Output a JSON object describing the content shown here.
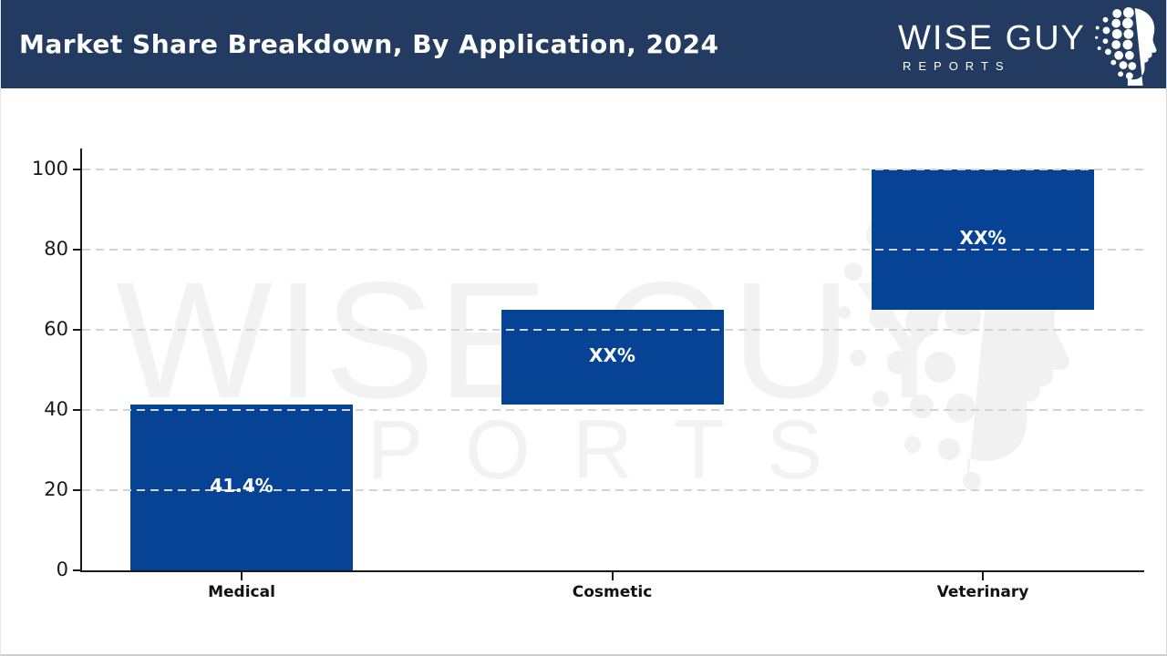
{
  "header": {
    "title": "Market Share Breakdown, By Application, 2024",
    "bg_color": "#233a61",
    "logo": {
      "line1": "WISE GUY",
      "line2": "REPORTS"
    }
  },
  "watermark": {
    "line1": "WISE GUY",
    "line2": "REPORTS",
    "color": "#f2f2f2"
  },
  "chart_data": {
    "type": "bar",
    "subtype": "floating-waterfall",
    "title": "Market Share Breakdown, By Application, 2024",
    "categories": [
      "Medical",
      "Cosmetic",
      "Veterinary"
    ],
    "segments": [
      {
        "category": "Medical",
        "start": 0,
        "end": 41.4,
        "label": "41.4%"
      },
      {
        "category": "Cosmetic",
        "start": 41.4,
        "end": 65,
        "label": "XX%"
      },
      {
        "category": "Veterinary",
        "start": 65,
        "end": 100,
        "label": "XX%"
      }
    ],
    "ylim": [
      0,
      100
    ],
    "yticks": [
      0,
      20,
      40,
      60,
      80,
      100
    ],
    "xlabel": "",
    "ylabel": "",
    "grid": "horizontal-dashed",
    "legend": "none",
    "bar_color": "#074394",
    "bar_label_color": "#ffffff",
    "axis_color": "#1a1a1a",
    "grid_color": "#d4d4d4"
  }
}
